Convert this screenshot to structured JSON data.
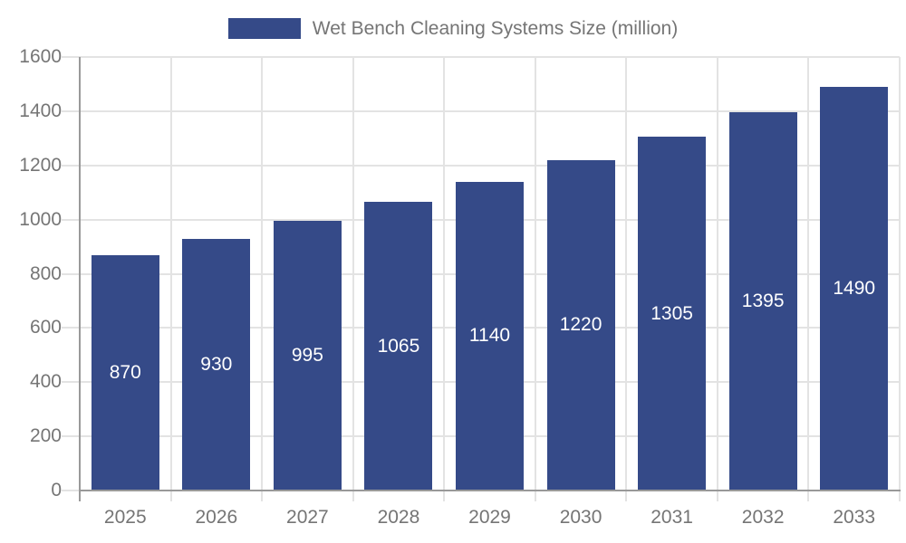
{
  "legend": {
    "label": "Wet Bench Cleaning Systems Size (million)"
  },
  "chart_data": {
    "type": "bar",
    "title": "Wet Bench Cleaning Systems Size (million)",
    "categories": [
      "2025",
      "2026",
      "2027",
      "2028",
      "2029",
      "2030",
      "2031",
      "2032",
      "2033"
    ],
    "values": [
      870,
      930,
      995,
      1065,
      1140,
      1220,
      1305,
      1395,
      1490
    ],
    "series_name": "Wet Bench Cleaning Systems Size (million)",
    "xlabel": "",
    "ylabel": "",
    "ylim": [
      0,
      1600
    ],
    "ytick_step": 200,
    "ytick_labels": [
      "0",
      "200",
      "400",
      "600",
      "800",
      "1000",
      "1200",
      "1400",
      "1600"
    ],
    "grid": true,
    "legend_position": "top-center",
    "value_labels": "inside-center",
    "colors": {
      "bar": "#354A88",
      "bar_label": "#ffffff",
      "axis_line": "#999999",
      "grid_line": "#e3e3e3",
      "tick_label": "#757575",
      "background": "#ffffff"
    }
  }
}
